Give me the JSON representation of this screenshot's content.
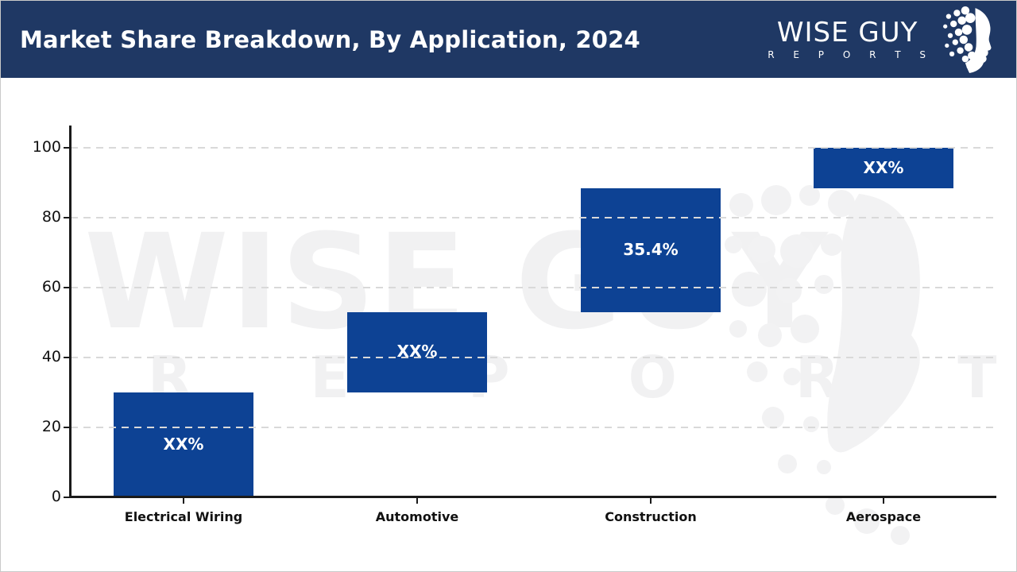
{
  "page": {
    "background": "#ffffff",
    "border_color": "#c9c9c9"
  },
  "header": {
    "bg_color": "#1f3864",
    "title": "Market Share Breakdown, By Application, 2024",
    "title_color": "#ffffff",
    "logo": {
      "line1": "WISE GUY",
      "line2": "R E P O R T S",
      "face_icon": "dotted-head-profile",
      "color": "#ffffff"
    }
  },
  "watermark": {
    "line1": "WISE GUY",
    "line2": "R E P O R T S",
    "color": "#f1f1f2"
  },
  "chart_data": {
    "type": "bar",
    "subtype": "floating-segment-waterfall",
    "title": "Market Share Breakdown, By Application, 2024",
    "categories": [
      "Electrical Wiring",
      "Automotive",
      "Construction",
      "Aerospace"
    ],
    "series": [
      {
        "name": "Electrical Wiring",
        "start": 0,
        "end": 30,
        "label": "XX%"
      },
      {
        "name": "Automotive",
        "start": 30,
        "end": 53,
        "label": "XX%"
      },
      {
        "name": "Construction",
        "start": 53,
        "end": 88.4,
        "label": "35.4%"
      },
      {
        "name": "Aerospace",
        "start": 88.4,
        "end": 100,
        "label": "XX%"
      }
    ],
    "yticks": [
      0,
      20,
      40,
      60,
      80,
      100
    ],
    "ylim": [
      0,
      106
    ],
    "xlabel": "",
    "ylabel": "",
    "grid": "horizontal dashed, drawn over bars",
    "legend": "none",
    "bar_color": "#0d4294",
    "bar_label_color": "#ffffff",
    "grid_color": "#d9d9d9",
    "axis_color": "#1a1a1a",
    "tick_label_color": "#111111"
  }
}
